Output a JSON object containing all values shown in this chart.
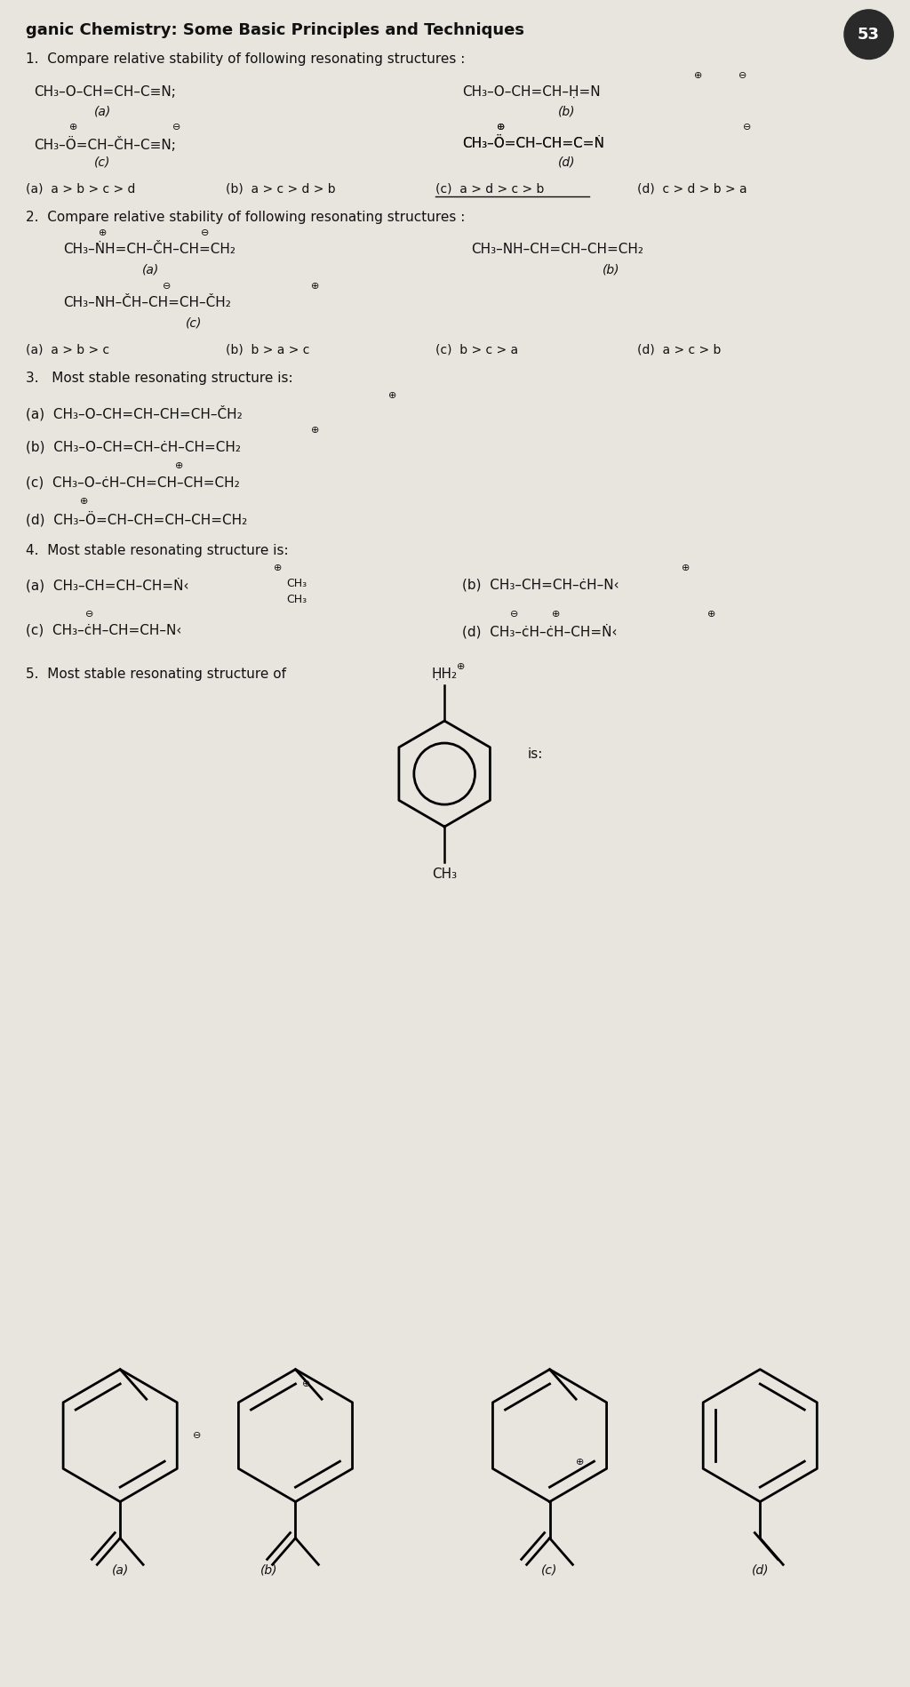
{
  "bg_color": "#e8e4de",
  "text_color": "#111111",
  "page_num": "53",
  "title": "ganic Chemistry: Some Basic Principles and Techniques",
  "q1_intro": "1.  Compare relative stability of following resonating structures :",
  "q2_intro": "2.  Compare relative stability of following resonating structures :",
  "q3_intro": "3.   Most stable resonating structure is:",
  "q4_intro": "4.  Most stable resonating structure is:",
  "q5_intro": "5.  Most stable resonating structure of",
  "q5_end": "is:",
  "figsize": [
    10.24,
    18.98
  ],
  "dpi": 100
}
